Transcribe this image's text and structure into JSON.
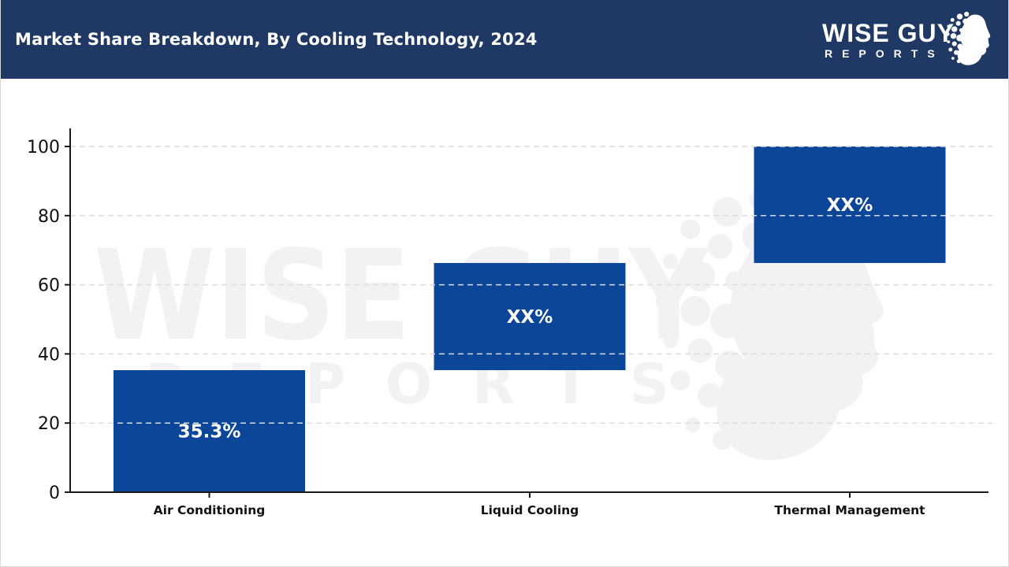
{
  "header": {
    "title": "Market Share Breakdown, By Cooling Technology, 2024",
    "logo": {
      "wordmark": "WISE GUY",
      "subtext": "REPORTS"
    }
  },
  "watermark": {
    "line1": "WISE GUY",
    "line2": "REPORTS"
  },
  "colors": {
    "header_background": "#1f3864",
    "bar_blue": "#0b4699",
    "bar_label_white": "#ffffff",
    "gridline_gray": "#dcdcdc",
    "axis_black": "#1a1a1a",
    "watermark_gray": "#f2f2f4",
    "figure_border_gray": "#d9d9d9"
  },
  "chart_data": {
    "type": "bar",
    "subtype": "floating-waterfall-segments",
    "title": "Market Share Breakdown, By Cooling Technology, 2024",
    "categories": [
      "Air Conditioning",
      "Liquid Cooling",
      "Thermal Management"
    ],
    "series": [
      {
        "name": "Market share (%)",
        "segment_start": [
          0,
          35.3,
          66.3
        ],
        "segment_end": [
          35.3,
          66.3,
          100
        ],
        "labels": [
          "35.3%",
          "XX%",
          "XX%"
        ]
      }
    ],
    "ylim": [
      0,
      100
    ],
    "yticks": [
      0,
      20,
      40,
      60,
      80,
      100
    ],
    "xlabel": "",
    "ylabel": "",
    "grid": "horizontal dashed, drawn over bars",
    "legend": "none",
    "bar_color": "#0b4699",
    "bar_label_color": "#ffffff"
  }
}
